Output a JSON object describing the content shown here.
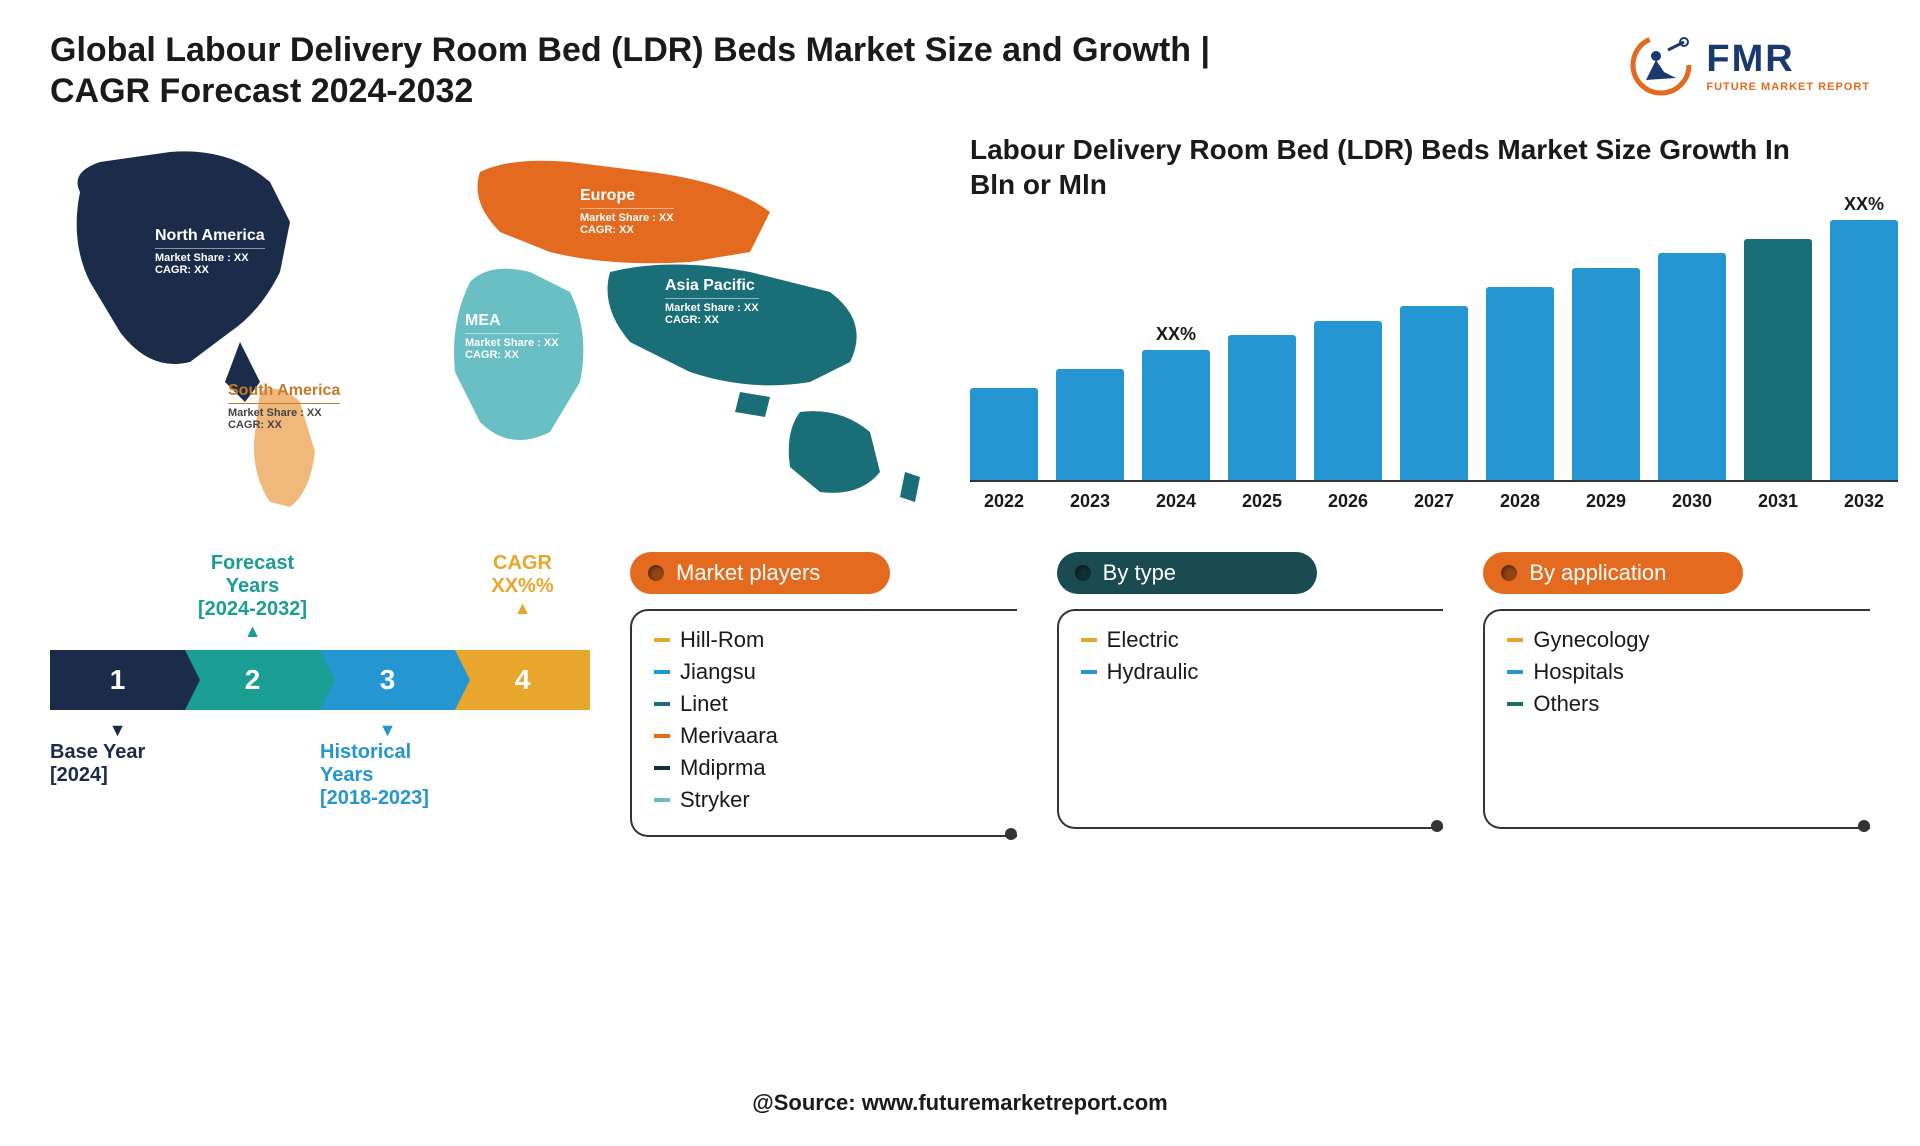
{
  "title": "Global Labour Delivery Room Bed (LDR) Beds Market Size and Growth | CAGR Forecast 2024-2032",
  "logo": {
    "text": "FMR",
    "subtitle": "FUTURE MARKET REPORT"
  },
  "map": {
    "regions": [
      {
        "id": "north_america",
        "name": "North America",
        "share": "Market Share : XX",
        "cagr": "CAGR: XX",
        "color": "#1a2c4a"
      },
      {
        "id": "south_america",
        "name": "South America",
        "share": "Market Share : XX",
        "cagr": "CAGR: XX",
        "color": "#f0b87a"
      },
      {
        "id": "europe",
        "name": "Europe",
        "share": "Market Share : XX",
        "cagr": "CAGR: XX",
        "color": "#e36a1e"
      },
      {
        "id": "mea",
        "name": "MEA",
        "share": "Market Share : XX",
        "cagr": "CAGR: XX",
        "color": "#6abfc4"
      },
      {
        "id": "asia_pacific",
        "name": "Asia Pacific",
        "share": "Market Share : XX",
        "cagr": "CAGR: XX",
        "color": "#1a6e78"
      }
    ]
  },
  "chart": {
    "type": "bar",
    "title": "Labour Delivery Room Bed (LDR) Beds Market Size Growth In\nBln or Mln",
    "years": [
      "2022",
      "2023",
      "2024",
      "2025",
      "2026",
      "2027",
      "2028",
      "2029",
      "2030",
      "2031",
      "2032"
    ],
    "values": [
      95,
      115,
      135,
      150,
      165,
      180,
      200,
      220,
      235,
      250,
      270
    ],
    "bar_color": "#2596d1",
    "alt_bar_color": "#1a6e78",
    "alt_indices": [
      9
    ],
    "annotations": [
      {
        "index": 2,
        "text": "XX%"
      },
      {
        "index": 10,
        "text": "XX%"
      }
    ],
    "axis_color": "#333333",
    "label_fontsize": 18
  },
  "timeline": {
    "top_labels": [
      {
        "text": "Forecast Years\n[2024-2032]",
        "color": "#1a9e94",
        "index": 1
      },
      {
        "text": "CAGR\nXX%%",
        "color": "#e8a62c",
        "index": 3
      }
    ],
    "segments": [
      {
        "num": "1",
        "color": "#1a2c4a"
      },
      {
        "num": "2",
        "color": "#1a9e94"
      },
      {
        "num": "3",
        "color": "#2596d1"
      },
      {
        "num": "4",
        "color": "#e8a62c"
      }
    ],
    "bottom_labels": [
      {
        "text": "Base Year\n[2024]",
        "color": "#1a2c4a",
        "index": 0
      },
      {
        "text": "Historical Years\n[2018-2023]",
        "color": "#2596d1",
        "index": 2
      }
    ]
  },
  "categories": [
    {
      "title": "Market players",
      "pill_color": "#e36a1e",
      "items": [
        {
          "label": "Hill-Rom",
          "marker": "#e8a62c"
        },
        {
          "label": "Jiangsu",
          "marker": "#2596d1"
        },
        {
          "label": "Linet",
          "marker": "#1a6e78"
        },
        {
          "label": "Merivaara",
          "marker": "#e36a1e"
        },
        {
          "label": "M​dipr​ma",
          "marker": "#1a2c4a"
        },
        {
          "label": "Stryker",
          "marker": "#6abfc4"
        }
      ]
    },
    {
      "title": "By type",
      "pill_color": "#1a4a52",
      "items": [
        {
          "label": "Electric",
          "marker": "#e8a62c"
        },
        {
          "label": "Hydraulic",
          "marker": "#2596d1"
        }
      ]
    },
    {
      "title": "By application",
      "pill_color": "#e36a1e",
      "items": [
        {
          "label": "Gynecology",
          "marker": "#e8a62c"
        },
        {
          "label": "Hospitals",
          "marker": "#2596d1"
        },
        {
          "label": "Others",
          "marker": "#1a6e78"
        }
      ]
    }
  ],
  "source": "@Source: www.futuremarketreport.com"
}
